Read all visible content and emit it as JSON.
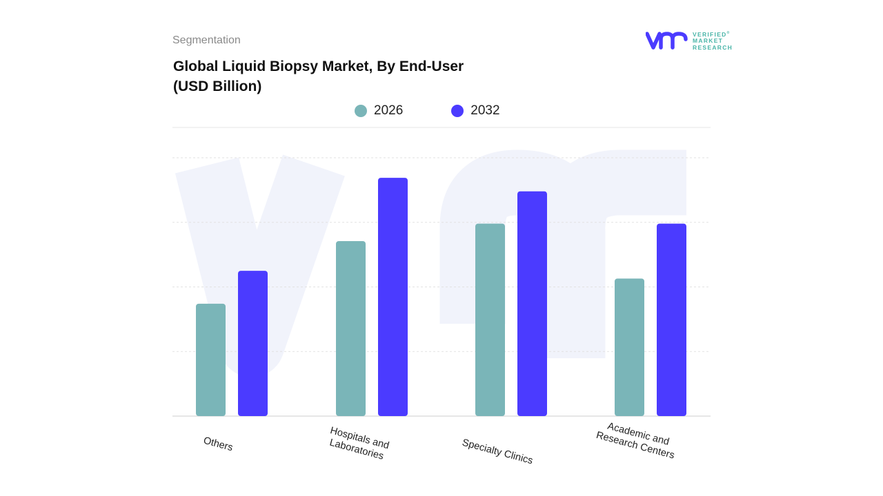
{
  "header": {
    "section": "Segmentation",
    "title_line1": "Global Liquid Biopsy Market, By End-User",
    "title_line2": "(USD Billion)"
  },
  "logo": {
    "mark": "vmr",
    "line1": "VERIFIED",
    "line2": "MARKET",
    "line3": "RESEARCH",
    "registered": "®"
  },
  "colors": {
    "s2026": "#7ab5b8",
    "s2032": "#4b3bff",
    "watermark": "#f1f3fb",
    "grid": "#e2e2e2"
  },
  "chart_data": {
    "type": "bar",
    "title": "Global Liquid Biopsy Market, By End-User (USD Billion)",
    "categories": [
      "Others",
      "Hospitals and Laboratories",
      "Specialty Clinics",
      "Academic and Research Centers"
    ],
    "series": [
      {
        "name": "2026",
        "values": [
          1.74,
          2.71,
          2.98,
          2.13
        ]
      },
      {
        "name": "2032",
        "values": [
          2.25,
          3.69,
          3.48,
          2.98
        ]
      }
    ],
    "ylim": [
      0,
      4
    ],
    "grid": true,
    "y_tick_labels_shown": false,
    "legend": "top-center",
    "xlabel": "",
    "ylabel": ""
  }
}
